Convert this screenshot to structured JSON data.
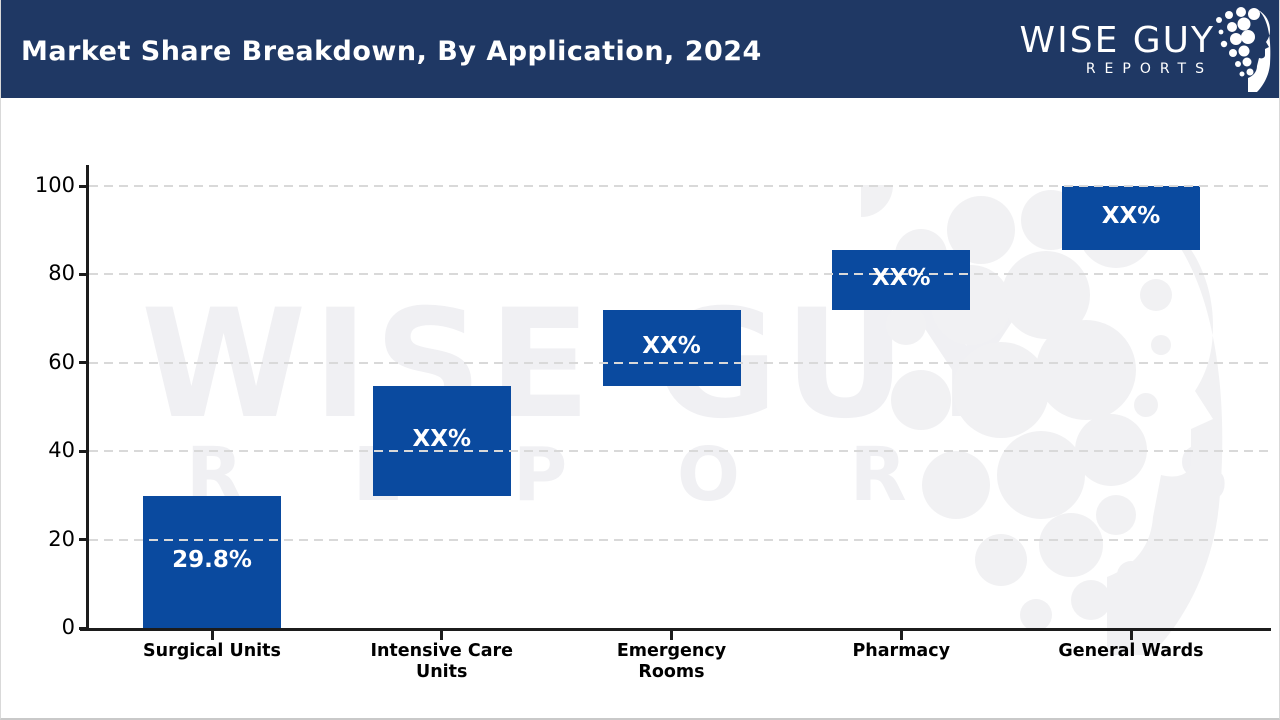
{
  "header": {
    "title": "Market Share Breakdown, By Application, 2024",
    "bg_color": "#1f3864",
    "logo": {
      "line1": "WISE GUY",
      "line2": "REPORTS",
      "icon": "dotted-head-profile"
    }
  },
  "watermark": {
    "line1": "WISE GUY",
    "line2": "R E P O R T S",
    "icon": "dotted-head-profile"
  },
  "chart_data": {
    "type": "bar",
    "subtype": "waterfall-floating-bars",
    "title": "Market Share Breakdown, By Application, 2024",
    "categories": [
      "Surgical Units",
      "Intensive Care Units",
      "Emergency Rooms",
      "Pharmacy",
      "General Wards"
    ],
    "tick_labels": [
      "Surgical Units",
      "Intensive Care\nUnits",
      "Emergency Rooms",
      "Pharmacy",
      "General Wards"
    ],
    "series": [
      {
        "category": "Surgical Units",
        "start": 0,
        "end": 29.8,
        "label": "29.8%"
      },
      {
        "category": "Intensive Care Units",
        "start": 29.8,
        "end": 54.7,
        "label": "XX%"
      },
      {
        "category": "Emergency Rooms",
        "start": 54.7,
        "end": 71.9,
        "label": "XX%"
      },
      {
        "category": "Pharmacy",
        "start": 71.9,
        "end": 85.6,
        "label": "XX%"
      },
      {
        "category": "General Wards",
        "start": 85.6,
        "end": 100,
        "label": "XX%"
      }
    ],
    "xlabel": "",
    "ylabel": "",
    "yticks": [
      0,
      20,
      40,
      60,
      80,
      100
    ],
    "ylim": [
      0,
      105
    ],
    "grid": "dashed horizontal, drawn above bars",
    "legend": "none",
    "bar_color": "#0a4a9f",
    "grid_color": "#d9d9d9",
    "axis_color": "#1c1c1c",
    "label_color_on_bar": "#ffffff"
  }
}
